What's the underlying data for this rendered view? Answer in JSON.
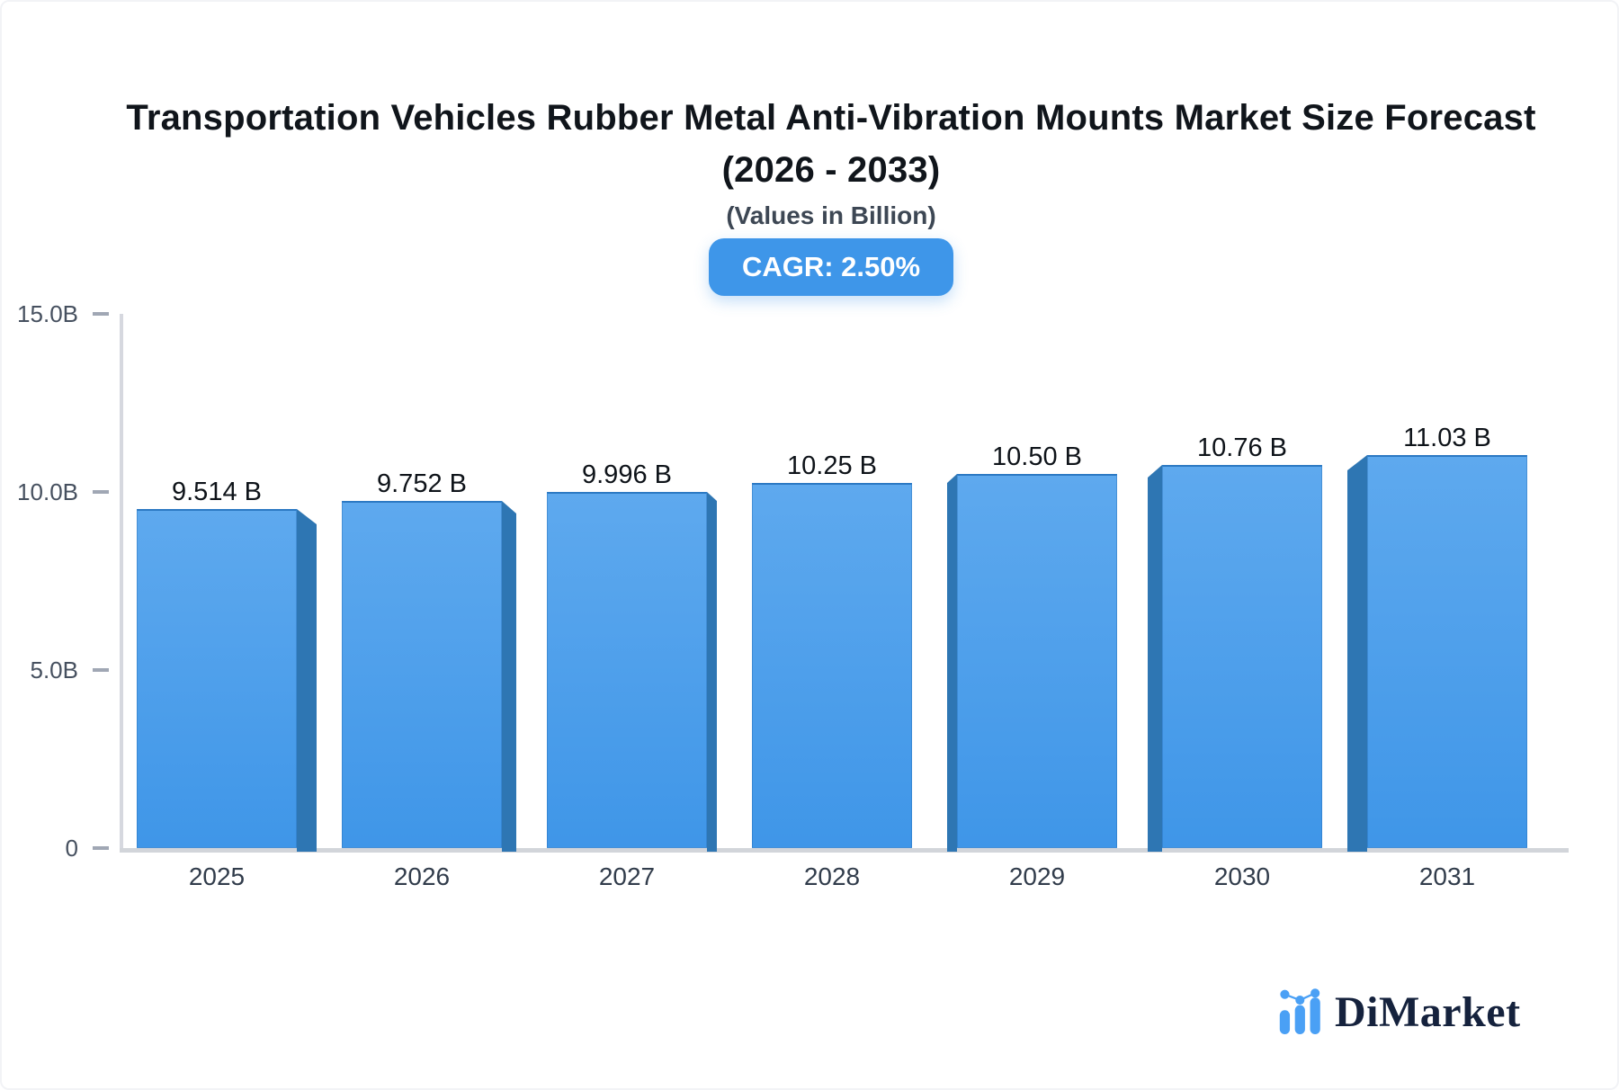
{
  "title": {
    "line1": "Transportation Vehicles Rubber Metal Anti-Vibration Mounts Market Size Forecast",
    "line2": "(2026 - 2033)",
    "subtitle": "(Values in Billion)"
  },
  "badge": {
    "label": "CAGR: 2.50%",
    "bg": "#3e96e9",
    "text_color": "#ffffff"
  },
  "chart_data": {
    "type": "bar",
    "title": "Transportation Vehicles Rubber Metal Anti-Vibration Mounts Market Size Forecast (2026 - 2033)",
    "subtitle": "(Values in Billion)",
    "categories": [
      "2025",
      "2026",
      "2027",
      "2028",
      "2029",
      "2030",
      "2031"
    ],
    "values": [
      9.514,
      9.752,
      9.996,
      10.25,
      10.5,
      10.76,
      11.03
    ],
    "value_labels": [
      "9.514 B",
      "9.752 B",
      "9.996 B",
      "10.25 B",
      "10.50 B",
      "10.76 B",
      "11.03 B"
    ],
    "unit": "B",
    "y_ticks": [
      {
        "value": 0,
        "label": "0"
      },
      {
        "value": 5,
        "label": "5.0B"
      },
      {
        "value": 10,
        "label": "10.0B"
      },
      {
        "value": 15,
        "label": "15.0B"
      }
    ],
    "ylim": [
      0,
      15
    ],
    "xlabel": "",
    "ylabel": "",
    "grid": false,
    "legend_position": "none",
    "bar_color_top": "#5ea9ee",
    "bar_color_bottom": "#3f96e8",
    "bar_side_color": "#2e76b3"
  },
  "logo": {
    "text": "DiMarket",
    "icon": "bar-chart-logo-icon",
    "text_color": "#15223d",
    "accent": "#4aa0f5"
  }
}
